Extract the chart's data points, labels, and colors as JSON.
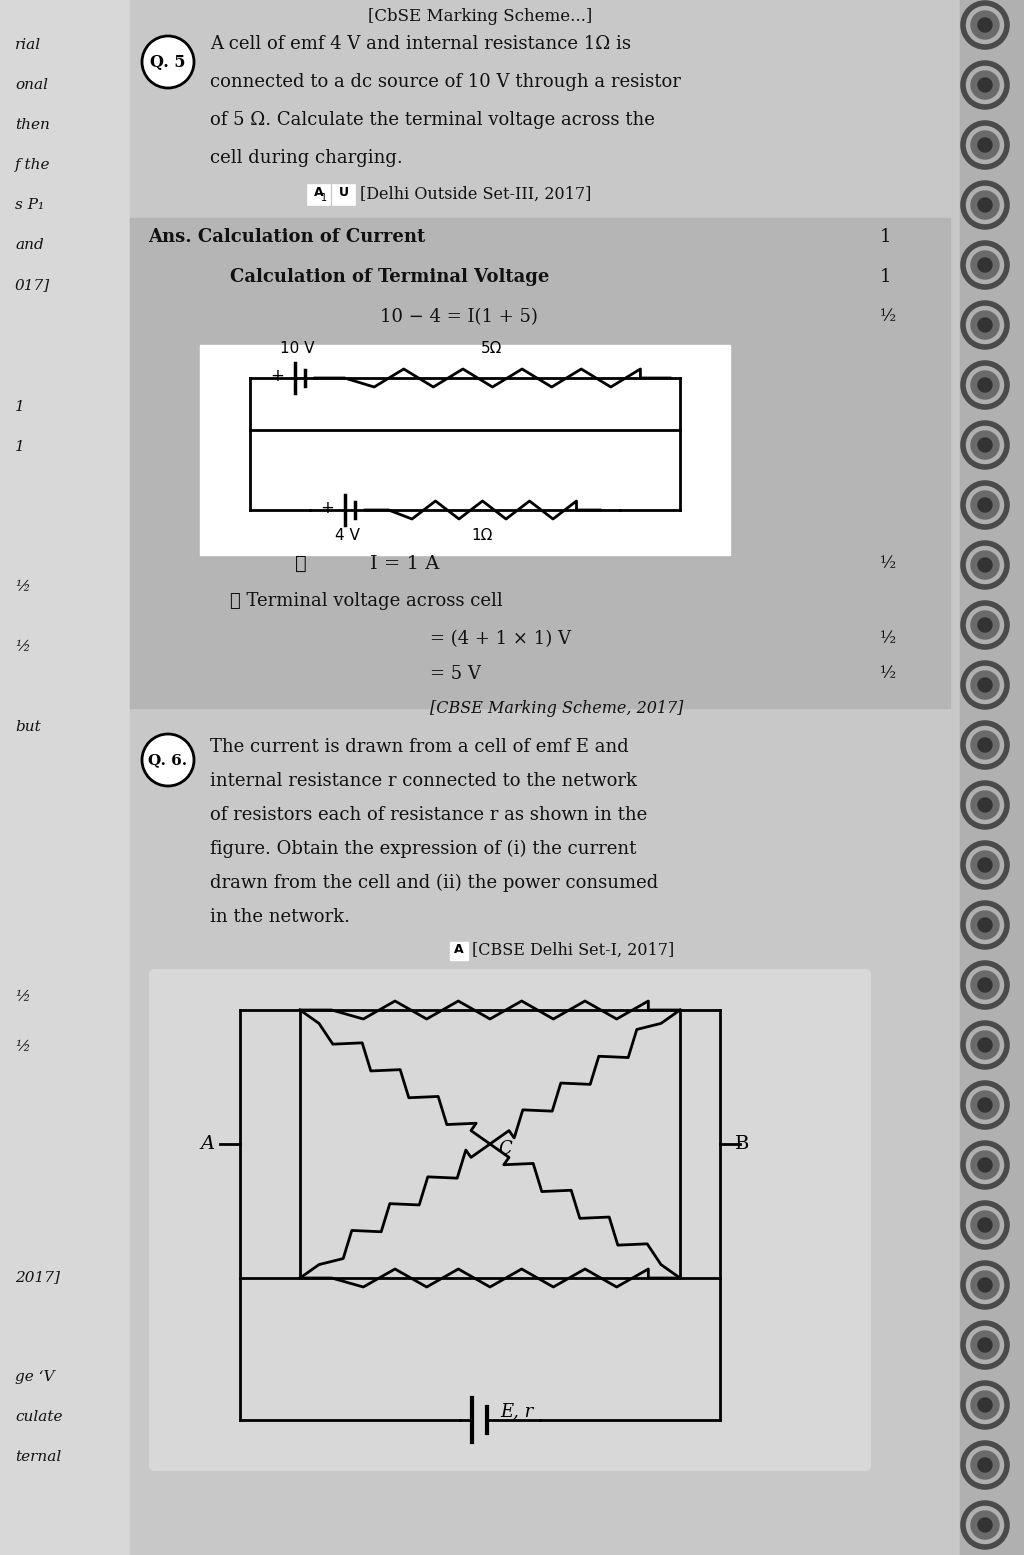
{
  "bg_color_light": "#e8e8e8",
  "bg_color_main": "#c0c0c0",
  "ans_box_color": "#b8b8b8",
  "circ_box_color": "#ffffff",
  "circ2_box_color": "#f0f0f0",
  "text_color": "#111111",
  "page_left_bg": "#d8d8d8",
  "q5_text_lines": [
    "A cell of emf 4 V and internal resistance 1Ω is",
    "connected to a dc source of 10 V through a resistor",
    "of 5 Ω. Calculate the terminal voltage across the",
    "cell during charging."
  ],
  "ref1": "[Delhi Outside Set-III, 2017]",
  "q6_text_lines": [
    "The current is drawn from a cell of emf E and",
    "internal resistance r connected to the network",
    "of resistors each of resistance r as shown in the",
    "figure. Obtain the expression of (i) the current",
    "drawn from the cell and (ii) the power consumed",
    "in the network."
  ],
  "ref2": "A [CBSE Delhi Set-I, 2017]",
  "cbse_scheme": "[CBSE Marking Scheme, 2017]",
  "left_margin_words": [
    "rial",
    "onal",
    "then",
    "f the",
    "s P₁",
    "and",
    "017]",
    "1",
    "1",
    "½",
    "½",
    "but",
    "½",
    "½",
    "2017]",
    "ge ‘V",
    "culate",
    "ternal"
  ]
}
